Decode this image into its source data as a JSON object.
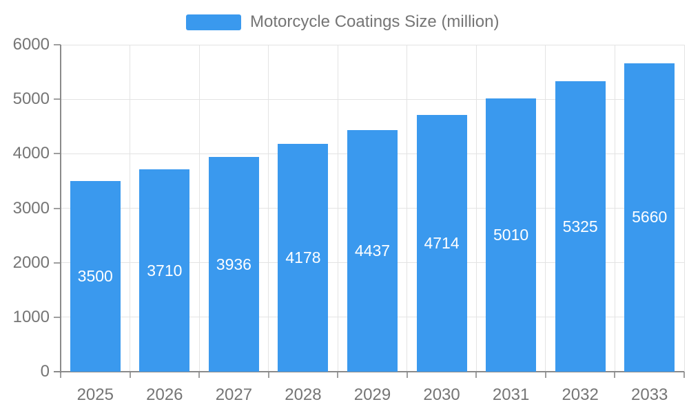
{
  "legend": {
    "label": "Motorcycle Coatings Size (million)"
  },
  "colors": {
    "bar": "#3A99EE",
    "axis_text": "#757575",
    "value_text": "#ffffff",
    "gridline": "#E3E3E3",
    "axis_line": "#8A8A8A"
  },
  "chart_data": {
    "type": "bar",
    "title": "Motorcycle Coatings Size (million)",
    "legend_entries": [
      "Motorcycle Coatings Size (million)"
    ],
    "legend_position": "top-center",
    "categories": [
      "2025",
      "2026",
      "2027",
      "2028",
      "2029",
      "2030",
      "2031",
      "2032",
      "2033"
    ],
    "values": [
      3500,
      3710,
      3936,
      4178,
      4437,
      4714,
      5010,
      5325,
      5660
    ],
    "value_labels_position": "inside-center",
    "xlabel": "",
    "ylabel": "",
    "ylim": [
      0,
      6000
    ],
    "yticks": [
      0,
      1000,
      2000,
      3000,
      4000,
      5000,
      6000
    ],
    "grid": true
  }
}
